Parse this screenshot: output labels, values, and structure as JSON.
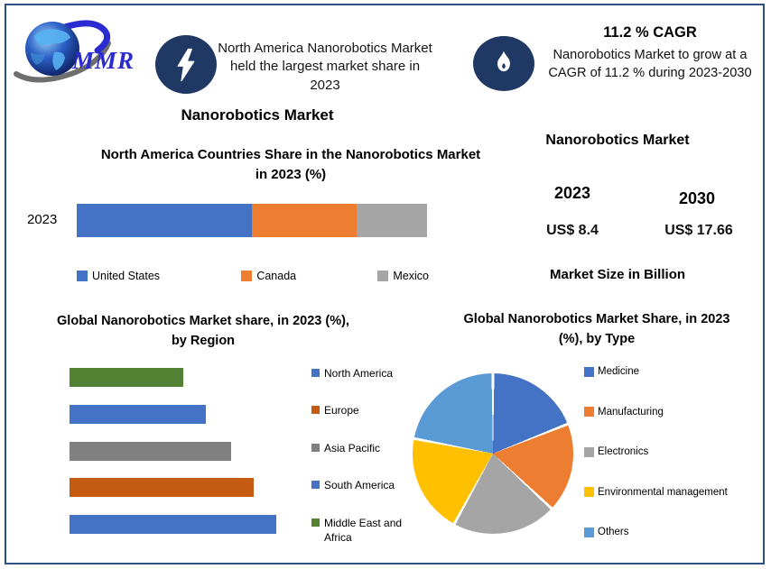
{
  "page": {
    "border_color": "#2e5086",
    "accent_navy": "#1f3864",
    "value_blue": "#2581c5"
  },
  "logo": {
    "text": "MMR"
  },
  "header": {
    "fact": "North America Nanorobotics Market held the largest market share in 2023",
    "cagr_title": "11.2 % CAGR",
    "cagr_text": "Nanorobotics Market to grow at a CAGR of 11.2 % during 2023-2030"
  },
  "left_panel": {
    "title": "Nanorobotics Market"
  },
  "right_panel": {
    "title": "Nanorobotics Market",
    "cols": [
      {
        "year": "2023",
        "value": "US$ 8.4"
      },
      {
        "year": "2030",
        "value": "US$ 17.66"
      }
    ],
    "caption": "Market Size in Billion"
  },
  "chart_data": [
    {
      "type": "bar",
      "subtype": "stacked-horizontal",
      "title": "North America Countries Share in the Nanorobotics Market in 2023 (%)",
      "categories": [
        "2023"
      ],
      "series": [
        {
          "name": "United States",
          "values": [
            50
          ],
          "color": "#4472C4"
        },
        {
          "name": "Canada",
          "values": [
            30
          ],
          "color": "#ED7D31"
        },
        {
          "name": "Mexico",
          "values": [
            20
          ],
          "color": "#A5A5A5"
        }
      ],
      "unit": "%",
      "legend_position": "bottom",
      "grid": false
    },
    {
      "type": "bar",
      "subtype": "horizontal",
      "title": "Global Nanorobotics Market share, in 2023 (%), by Region",
      "categories": [
        "North America",
        "Europe",
        "Asia Pacific",
        "South America",
        "Middle East and Africa"
      ],
      "values": [
        100,
        89,
        78,
        66,
        55
      ],
      "values_note": "no axis shown; bar lengths relative to longest bar = 100",
      "colors": [
        "#4472C4",
        "#C55A11",
        "#808080",
        "#4472C4",
        "#548235"
      ],
      "legend_position": "right",
      "grid": false
    },
    {
      "type": "pie",
      "title": "Global Nanorobotics Market Share, in 2023 (%), by Type",
      "labels": [
        "Medicine",
        "Manufacturing",
        "Electronics",
        "Environmental management",
        "Others"
      ],
      "values": [
        19,
        18,
        21,
        20,
        22
      ],
      "values_note": "estimated from slice angles; no data labels shown",
      "colors": [
        "#4472C4",
        "#ED7D31",
        "#A5A5A5",
        "#FFC000",
        "#5B9BD5"
      ],
      "start_angle_deg": 0,
      "legend_position": "right"
    }
  ]
}
